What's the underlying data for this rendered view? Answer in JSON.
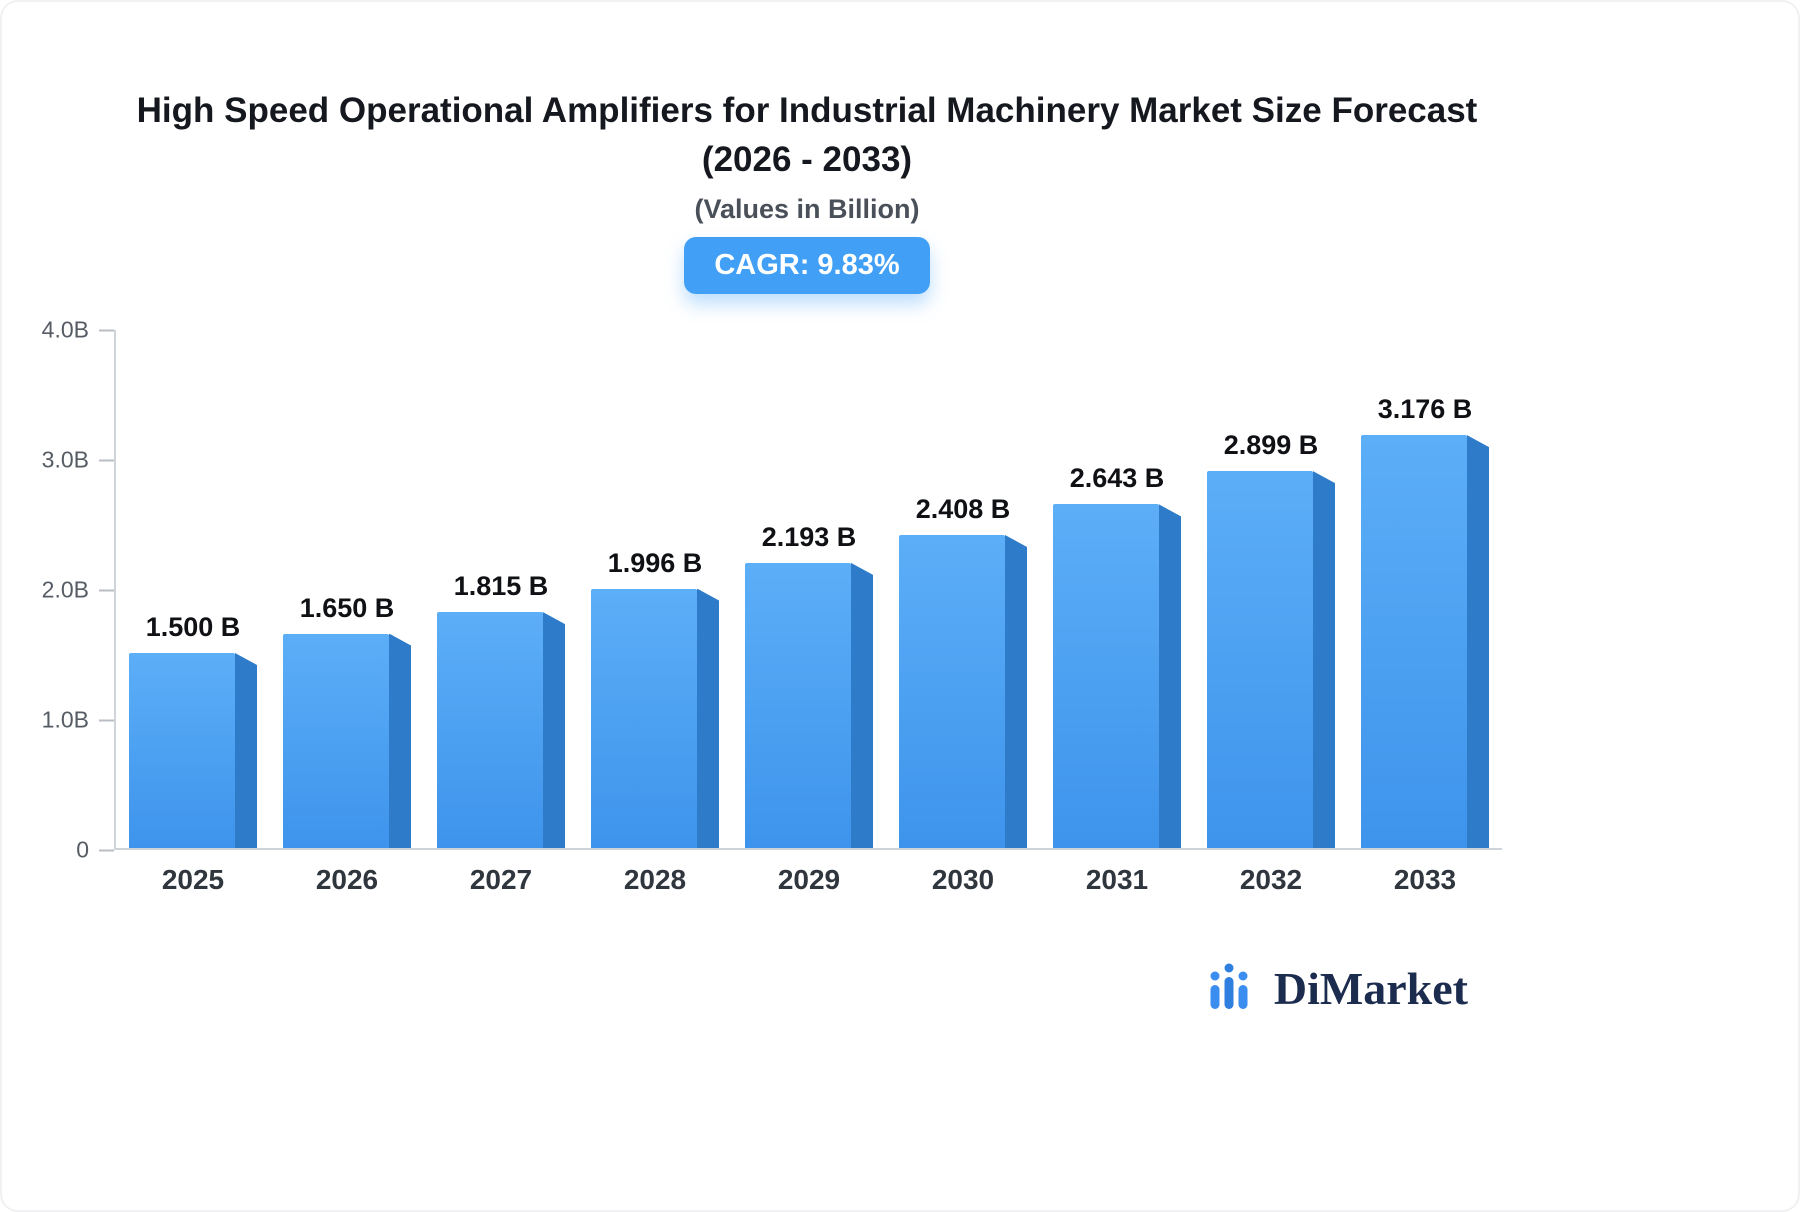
{
  "chart_data": {
    "type": "bar",
    "title_line1": "High Speed Operational Amplifiers for Industrial Machinery Market Size Forecast",
    "title_line2": "(2026 - 2033)",
    "subtitle": "(Values in Billion)",
    "cagr_badge": "CAGR: 9.83%",
    "categories": [
      "2025",
      "2026",
      "2027",
      "2028",
      "2029",
      "2030",
      "2031",
      "2032",
      "2033"
    ],
    "values": [
      1.5,
      1.65,
      1.815,
      1.996,
      2.193,
      2.408,
      2.643,
      2.899,
      3.176
    ],
    "value_labels": [
      "1.500 B",
      "1.650 B",
      "1.815 B",
      "1.996 B",
      "2.193 B",
      "2.408 B",
      "2.643 B",
      "2.899 B",
      "3.176 B"
    ],
    "xlabel": "",
    "ylabel": "",
    "ylim": [
      0,
      4.0
    ],
    "grid": false,
    "legend": false,
    "yticks": [
      {
        "label": "4.0B",
        "value": 4.0
      },
      {
        "label": "3.0B",
        "value": 3.0
      },
      {
        "label": "2.0B",
        "value": 2.0
      },
      {
        "label": "1.0B",
        "value": 1.0
      },
      {
        "label": "0",
        "value": 0.0
      }
    ],
    "colors": {
      "bar_top": "#5caef7",
      "bar_bottom": "#3e94ec",
      "bar_side": "#2d7bc9",
      "badge": "#41a0f6"
    }
  },
  "branding": {
    "logo_text": "DiMarket",
    "logo_icon": "bar-chart-icon",
    "logo_color": "#3b8df0"
  }
}
